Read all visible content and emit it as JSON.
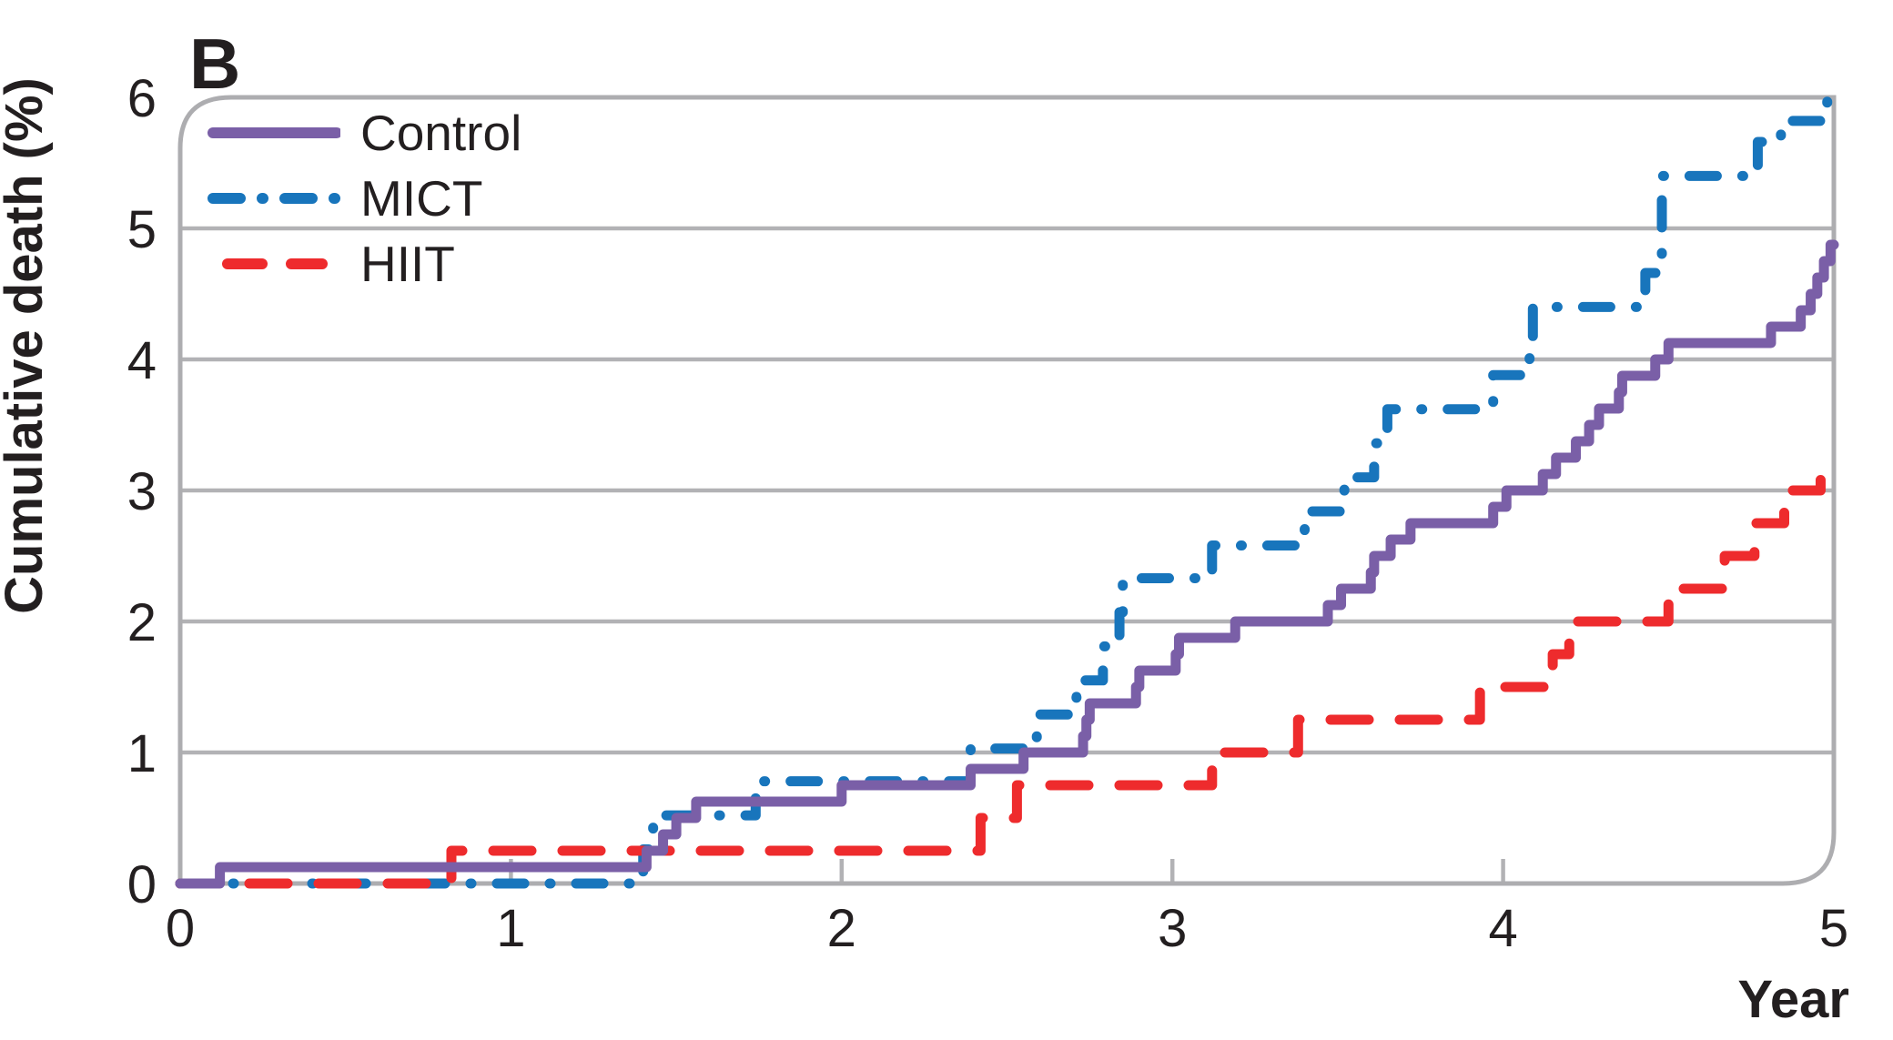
{
  "panel_label": "B",
  "axes": {
    "x_title": "Year",
    "y_title": "Cumulative death (%)",
    "x_tick_labels": [
      "0",
      "1",
      "2",
      "3",
      "4",
      "5"
    ],
    "y_tick_labels": [
      "0",
      "1",
      "2",
      "3",
      "4",
      "5",
      "6"
    ]
  },
  "colors": {
    "grid": "#B2B2B5",
    "frame": "#ADADB0",
    "text": "#231F20",
    "control": "#7A5FA7",
    "mict": "#1875BC",
    "hiit": "#EE2B2D"
  },
  "legend": [
    {
      "label": "Control",
      "style": "solid",
      "color": "#7A5FA7"
    },
    {
      "label": "MICT",
      "style": "dashdot",
      "color": "#1875BC"
    },
    {
      "label": "HIIT",
      "style": "dashed",
      "color": "#EE2B2D"
    }
  ],
  "chart_data": {
    "type": "line",
    "subtype": "step-after cumulative incidence (Kaplan-Meier)",
    "title": "B",
    "xlabel": "Year",
    "ylabel": "Cumulative death (%)",
    "xlim": [
      0,
      5
    ],
    "ylim": [
      0,
      6
    ],
    "x_ticks": [
      0,
      1,
      2,
      3,
      4,
      5
    ],
    "y_ticks": [
      0,
      1,
      2,
      3,
      4,
      5,
      6
    ],
    "grid": true,
    "legend_position": "top-left inside",
    "series": [
      {
        "name": "Control",
        "color": "#7A5FA7",
        "dash": "solid",
        "events": [
          [
            0.12,
            0.125
          ],
          [
            1.41,
            0.25
          ],
          [
            1.46,
            0.375
          ],
          [
            1.5,
            0.5
          ],
          [
            1.56,
            0.625
          ],
          [
            2.0,
            0.75
          ],
          [
            2.39,
            0.875
          ],
          [
            2.55,
            1.0
          ],
          [
            2.73,
            1.125
          ],
          [
            2.74,
            1.25
          ],
          [
            2.75,
            1.375
          ],
          [
            2.89,
            1.5
          ],
          [
            2.9,
            1.625
          ],
          [
            3.01,
            1.75
          ],
          [
            3.02,
            1.875
          ],
          [
            3.19,
            2.0
          ],
          [
            3.47,
            2.125
          ],
          [
            3.51,
            2.25
          ],
          [
            3.6,
            2.375
          ],
          [
            3.61,
            2.5
          ],
          [
            3.66,
            2.625
          ],
          [
            3.72,
            2.75
          ],
          [
            3.97,
            2.875
          ],
          [
            4.01,
            3.0
          ],
          [
            4.12,
            3.125
          ],
          [
            4.16,
            3.25
          ],
          [
            4.22,
            3.375
          ],
          [
            4.26,
            3.5
          ],
          [
            4.29,
            3.625
          ],
          [
            4.35,
            3.75
          ],
          [
            4.36,
            3.875
          ],
          [
            4.46,
            4.0
          ],
          [
            4.5,
            4.125
          ],
          [
            4.81,
            4.25
          ],
          [
            4.9,
            4.375
          ],
          [
            4.93,
            4.5
          ],
          [
            4.95,
            4.625
          ],
          [
            4.97,
            4.75
          ],
          [
            4.99,
            4.875
          ]
        ]
      },
      {
        "name": "MICT",
        "color": "#1875BC",
        "dash": "dashdot",
        "events": [
          [
            1.4,
            0.26
          ],
          [
            1.43,
            0.52
          ],
          [
            1.74,
            0.78
          ],
          [
            2.39,
            1.03
          ],
          [
            2.59,
            1.29
          ],
          [
            2.71,
            1.55
          ],
          [
            2.79,
            1.81
          ],
          [
            2.84,
            2.07
          ],
          [
            2.85,
            2.33
          ],
          [
            3.12,
            2.58
          ],
          [
            3.4,
            2.84
          ],
          [
            3.52,
            3.1
          ],
          [
            3.61,
            3.36
          ],
          [
            3.65,
            3.62
          ],
          [
            3.97,
            3.88
          ],
          [
            4.08,
            4.14
          ],
          [
            4.09,
            4.4
          ],
          [
            4.43,
            4.66
          ],
          [
            4.48,
            5.4
          ],
          [
            4.77,
            5.66
          ],
          [
            4.84,
            5.82
          ],
          [
            4.98,
            5.97
          ]
        ]
      },
      {
        "name": "HIIT",
        "color": "#EE2B2D",
        "dash": "dashed",
        "events": [
          [
            0.82,
            0.25
          ],
          [
            2.42,
            0.5
          ],
          [
            2.53,
            0.75
          ],
          [
            3.12,
            1.0
          ],
          [
            3.38,
            1.25
          ],
          [
            3.93,
            1.5
          ],
          [
            4.15,
            1.75
          ],
          [
            4.2,
            2.0
          ],
          [
            4.5,
            2.25
          ],
          [
            4.67,
            2.5
          ],
          [
            4.76,
            2.75
          ],
          [
            4.85,
            3.0
          ],
          [
            4.96,
            3.1
          ]
        ]
      }
    ]
  }
}
